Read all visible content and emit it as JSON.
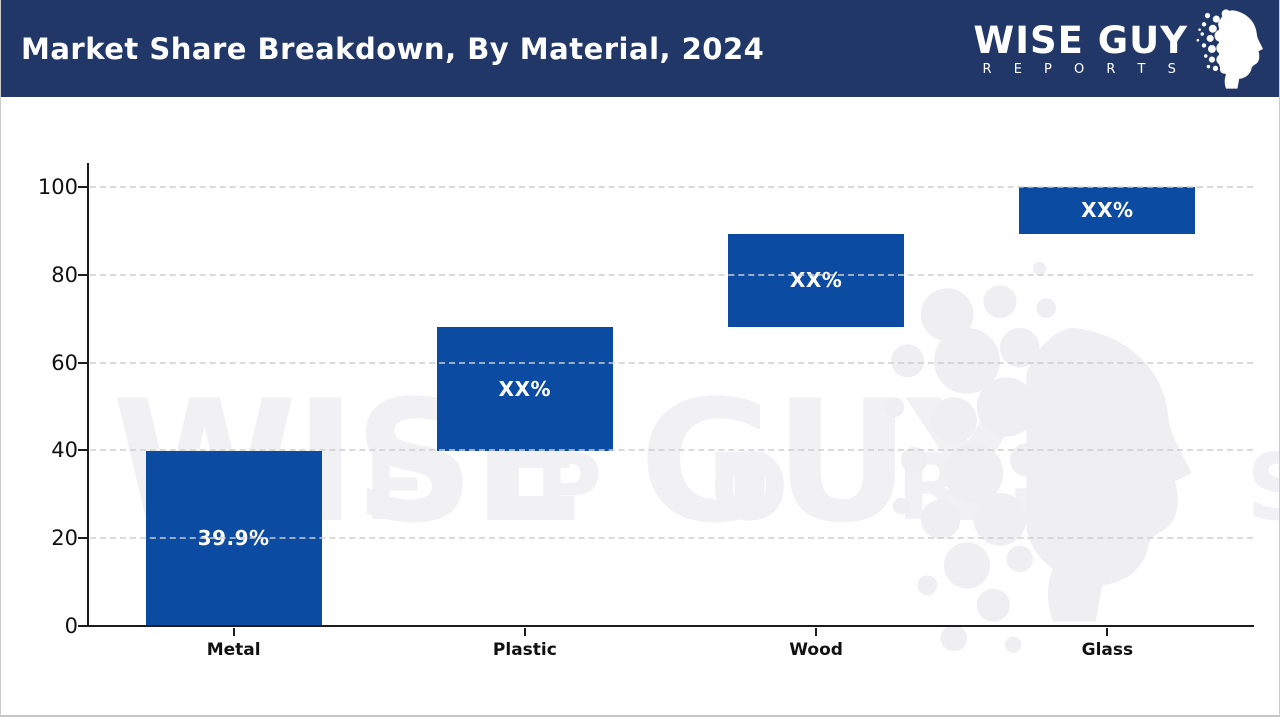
{
  "header": {
    "title": "Market Share Breakdown, By Material, 2024",
    "bg_color": "#203768",
    "logo": {
      "line1": "WISE GUY",
      "line2": "R E P O R T S",
      "icon": "wiseguy-dotted-head-icon"
    }
  },
  "watermark": {
    "line1": "WISE GUY.",
    "line2": "R E P O R T S",
    "icon": "wiseguy-dotted-head-watermark",
    "color": "#f1f1f3"
  },
  "chart_data": {
    "type": "bar",
    "subtype": "waterfall",
    "title": "Market Share Breakdown, By Material, 2024",
    "xlabel": "",
    "ylabel": "",
    "categories": [
      "Metal",
      "Plastic",
      "Wood",
      "Glass"
    ],
    "segments": [
      {
        "category": "Metal",
        "start": 0,
        "end": 39.9,
        "label": "39.9%"
      },
      {
        "category": "Plastic",
        "start": 39.9,
        "end": 68.2,
        "label": "XX%"
      },
      {
        "category": "Wood",
        "start": 68.2,
        "end": 89.3,
        "label": "XX%"
      },
      {
        "category": "Glass",
        "start": 89.3,
        "end": 100,
        "label": "XX%"
      }
    ],
    "ylim": [
      0,
      100
    ],
    "yticks": [
      0,
      20,
      40,
      60,
      80,
      100
    ],
    "grid": "horizontal dashed, light gray, drawn over bars",
    "legend": "none",
    "bar_color": "#0b4ba1",
    "bar_label_color": "#ffffff",
    "axis_color": "#1c1c1c"
  }
}
